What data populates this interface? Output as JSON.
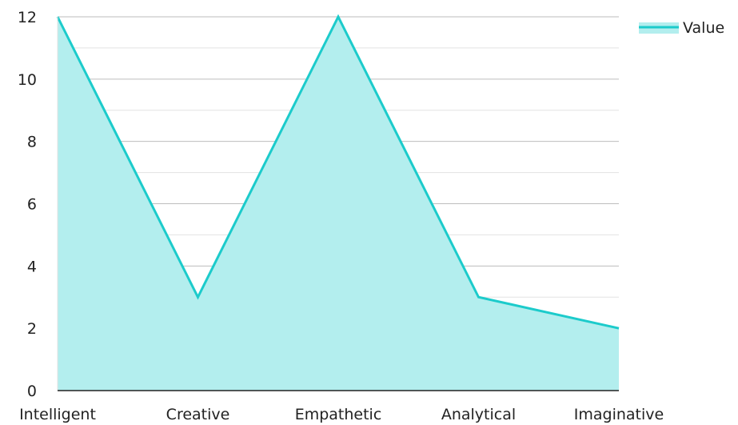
{
  "chart_data": {
    "type": "area",
    "categories": [
      "Intelligent",
      "Creative",
      "Empathetic",
      "Analytical",
      "Imaginative"
    ],
    "series": [
      {
        "name": "Value",
        "values": [
          12,
          3,
          12,
          3,
          2
        ]
      }
    ],
    "title": "",
    "xlabel": "",
    "ylabel": "",
    "ylim": [
      0,
      12
    ],
    "yticks": [
      0,
      2,
      4,
      6,
      8,
      10,
      12
    ],
    "grid": true,
    "legend": {
      "position": "top-right",
      "labels": [
        "Value"
      ]
    },
    "colors": {
      "line": "#1ccbcb",
      "fill": "#b3eeee",
      "grid_major": "#bdbdbd",
      "grid_minor": "#e3e3e3",
      "axis": "#222222"
    }
  }
}
